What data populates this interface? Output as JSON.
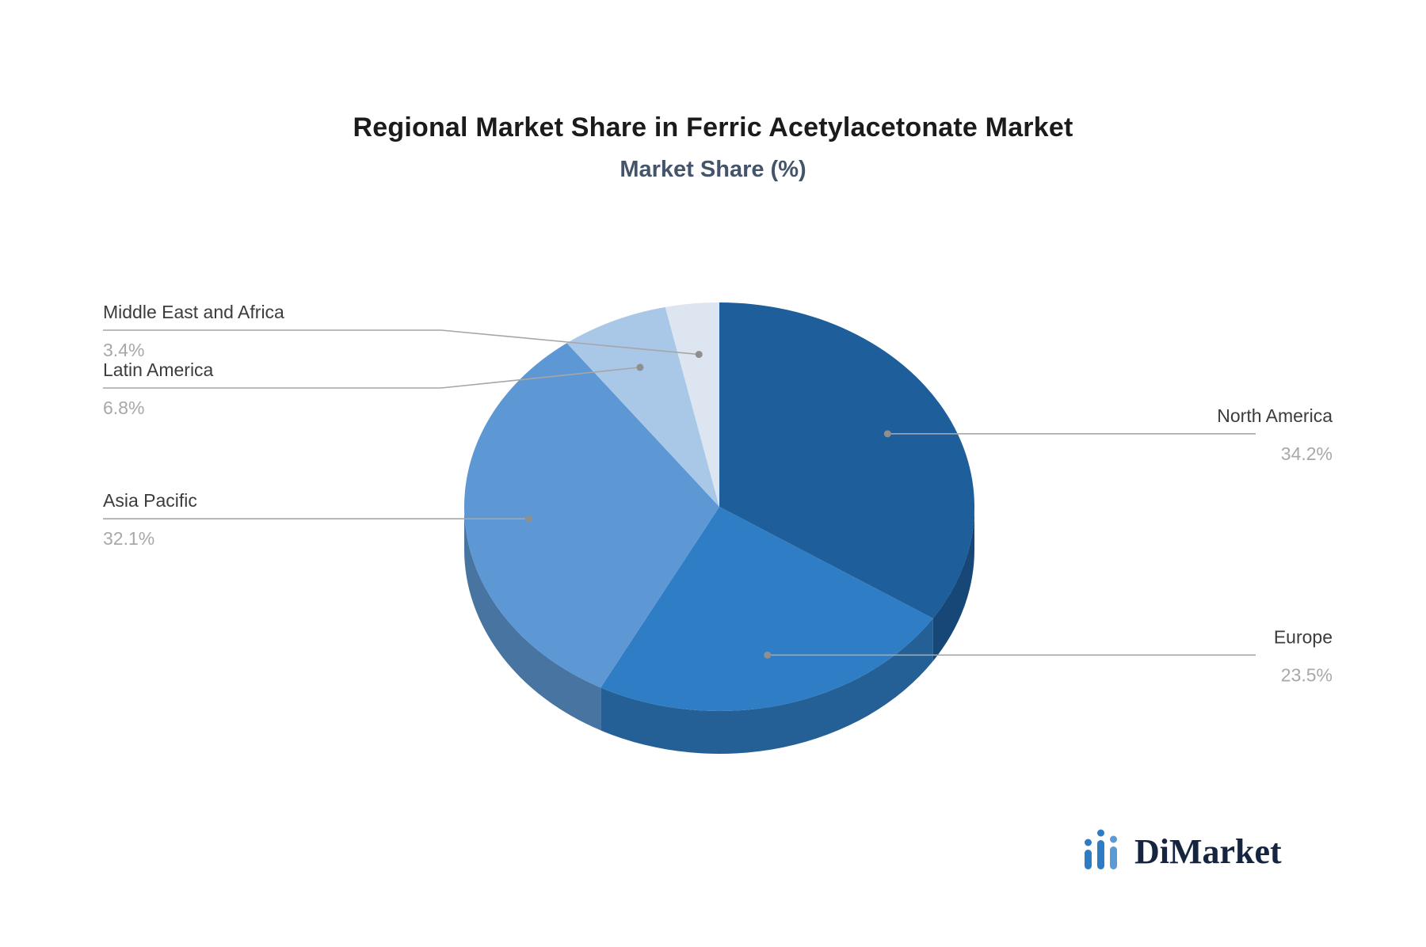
{
  "title": "Regional Market Share in Ferric Acetylacetonate Market",
  "subtitle": "Market Share (%)",
  "brand": {
    "name": "DiMarket"
  },
  "chart_data": {
    "type": "pie",
    "title": "Regional Market Share in Ferric Acetylacetonate Market",
    "subtitle": "Market Share (%)",
    "unit": "%",
    "style": "3d",
    "direction": "clockwise",
    "start_angle_deg": -90,
    "legend_position": "none",
    "categories": [
      "North America",
      "Europe",
      "Asia Pacific",
      "Latin America",
      "Middle East and Africa"
    ],
    "values": [
      34.2,
      23.5,
      32.1,
      6.8,
      3.4
    ],
    "labels": [
      "34.2%",
      "23.5%",
      "32.1%",
      "6.8%",
      "3.4%"
    ],
    "colors": [
      "#1d5e9b",
      "#2f7dc4",
      "#5e98d4",
      "#a9c8e8",
      "#dce5f0"
    ],
    "label_color": "#3c3c3c",
    "value_color": "#a8a8a8",
    "leader_line_color": "#a6a6a6",
    "leader_dot_color": "#8f8f8f"
  }
}
